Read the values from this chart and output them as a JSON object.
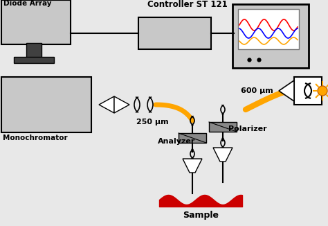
{
  "bg_color": "#e8e8e8",
  "labels": {
    "diode_array": "Diode Array",
    "controller": "Controller ST 121",
    "fiber1": "250 μm",
    "fiber2": "600 μm",
    "monochromator": "Monochromator",
    "analyzer": "Analyzer",
    "polarizer": "Polarizer",
    "sample": "Sample"
  },
  "colors": {
    "box_fill": "#c8c8c8",
    "dark_fill": "#404040",
    "fiber_orange": "#FFA500",
    "screen_bg": "#ffffff",
    "sample_red": "#cc0000",
    "prism_gray": "#888888"
  }
}
